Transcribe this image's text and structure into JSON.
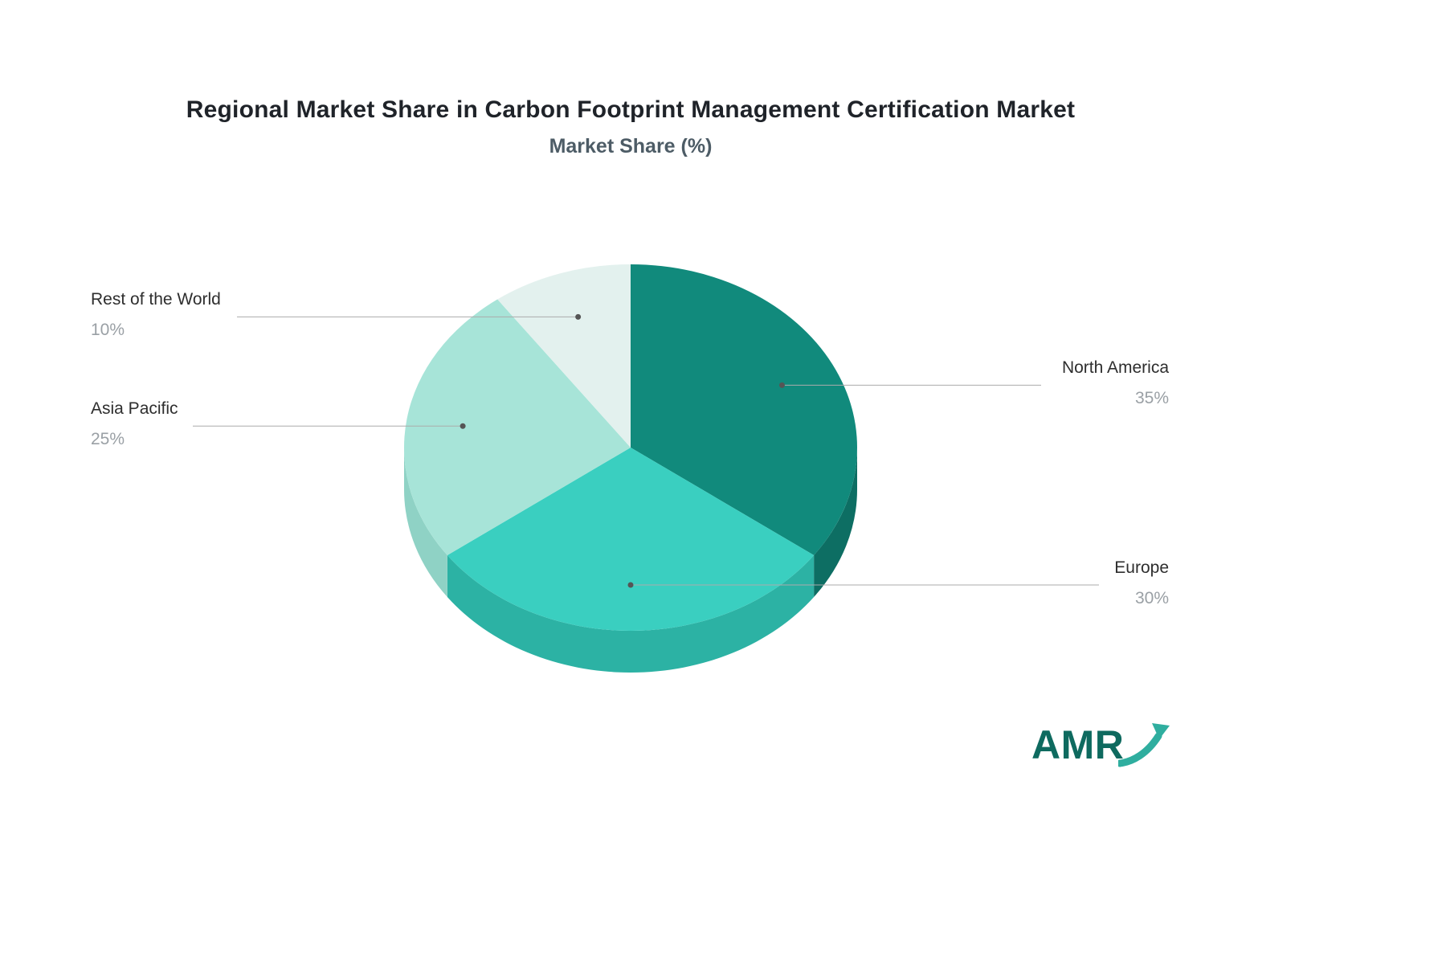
{
  "header": {
    "title": "Regional Market Share in Carbon Footprint Management Certification Market",
    "subtitle": "Market Share (%)"
  },
  "chart_data": {
    "type": "pie",
    "title": "Regional Market Share in Carbon Footprint Management Certification Market",
    "subtitle": "Market Share (%)",
    "unit": "%",
    "direction": "clockwise",
    "start_angle_deg": 0,
    "legend_position": "none",
    "style": "3d-pie",
    "items": [
      {
        "label": "North America",
        "value": 35,
        "value_label": "35%",
        "color": "#118A7C",
        "side_color": "#0D6E63"
      },
      {
        "label": "Europe",
        "value": 30,
        "value_label": "30%",
        "color": "#3ACFC0",
        "side_color": "#2CB2A4"
      },
      {
        "label": "Asia Pacific",
        "value": 25,
        "value_label": "25%",
        "color": "#A7E4D8",
        "side_color": "#8FD2C5"
      },
      {
        "label": "Rest of the World",
        "value": 10,
        "value_label": "10%",
        "color": "#E3F1EE",
        "side_color": "#CBE6E0"
      }
    ]
  },
  "logo": {
    "text": "AMR",
    "text_color": "#0E6A5F",
    "arrow_color": "#2FAE9F"
  }
}
